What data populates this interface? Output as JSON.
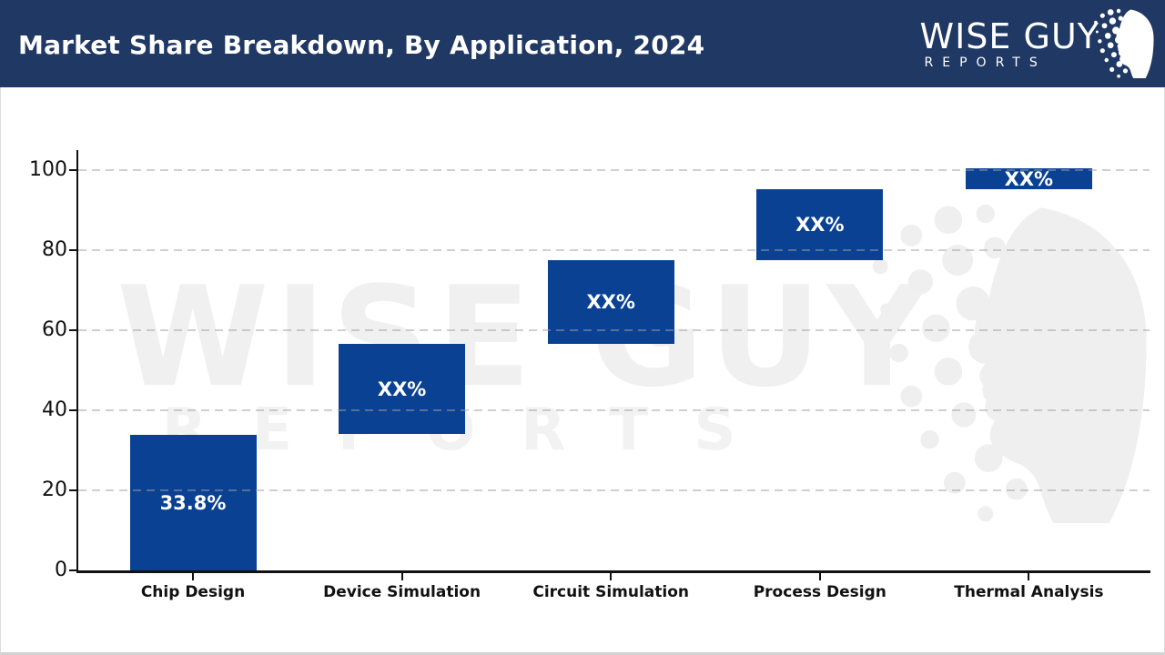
{
  "header": {
    "title": "Market Share Breakdown, By Application, 2024",
    "logo_line1": "WISE GUY",
    "logo_line2": "REPORTS"
  },
  "watermark": {
    "line1": "WISE GUY",
    "line2": "REPORTS"
  },
  "colors": {
    "header_bg": "#1f3864",
    "bar": "#0a4193",
    "bar_label": "#ffffff",
    "grid": "#d6d6d6",
    "axis": "#111111",
    "watermark": "#f0f0f0"
  },
  "chart_data": {
    "type": "bar",
    "subtype": "waterfall",
    "title": "Market Share Breakdown, By Application, 2024",
    "categories": [
      "Chip Design",
      "Device Simulation",
      "Circuit Simulation",
      "Process Design",
      "Thermal Analysis"
    ],
    "segments": [
      {
        "category": "Chip Design",
        "start": 0,
        "end": 33.8,
        "label": "33.8%"
      },
      {
        "category": "Device Simulation",
        "start": 34.0,
        "end": 56.6,
        "label": "XX%"
      },
      {
        "category": "Circuit Simulation",
        "start": 56.6,
        "end": 77.4,
        "label": "XX%"
      },
      {
        "category": "Process Design",
        "start": 77.4,
        "end": 95.2,
        "label": "XX%"
      },
      {
        "category": "Thermal Analysis",
        "start": 95.2,
        "end": 100.4,
        "label": "XX%"
      }
    ],
    "ylim": [
      0,
      105
    ],
    "yticks": [
      0,
      20,
      40,
      60,
      80,
      100
    ],
    "grid": "horizontal-dashed",
    "legend": false,
    "xlabel": "",
    "ylabel": ""
  }
}
